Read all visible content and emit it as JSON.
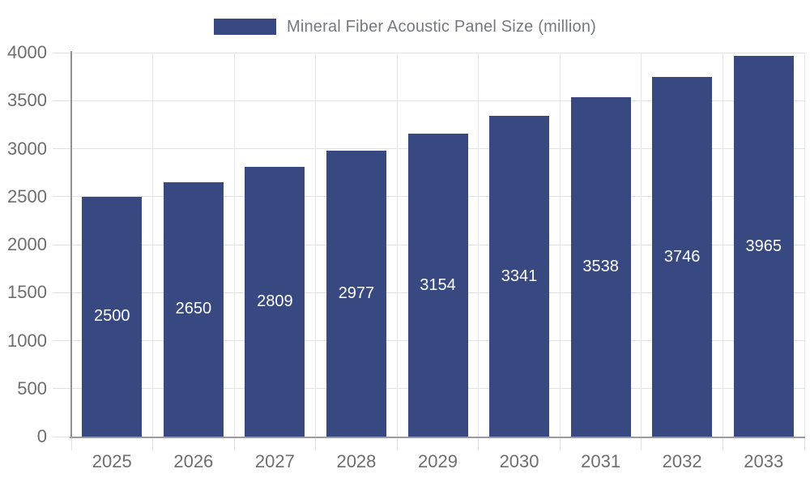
{
  "legend": {
    "label": "Mineral Fiber Acoustic Panel Size (million)"
  },
  "chart_data": {
    "type": "bar",
    "title": "Mineral Fiber Acoustic Panel Size (million)",
    "categories": [
      "2025",
      "2026",
      "2027",
      "2028",
      "2029",
      "2030",
      "2031",
      "2032",
      "2033"
    ],
    "values": [
      2500,
      2650,
      2809,
      2977,
      3154,
      3341,
      3538,
      3746,
      3965
    ],
    "xlabel": "",
    "ylabel": "",
    "ylim": [
      0,
      4000
    ],
    "yticks": [
      0,
      500,
      1000,
      1500,
      2000,
      2500,
      3000,
      3500,
      4000
    ],
    "ytick_labels": [
      "0",
      "500",
      "1000",
      "1500",
      "2000",
      "2500",
      "3000",
      "3500",
      "4000"
    ],
    "bar_color": "#384982",
    "bar_label_color": "#ffffff",
    "axis_label_color": "#6e6e6e",
    "grid": true,
    "legend_position": "top-center"
  }
}
